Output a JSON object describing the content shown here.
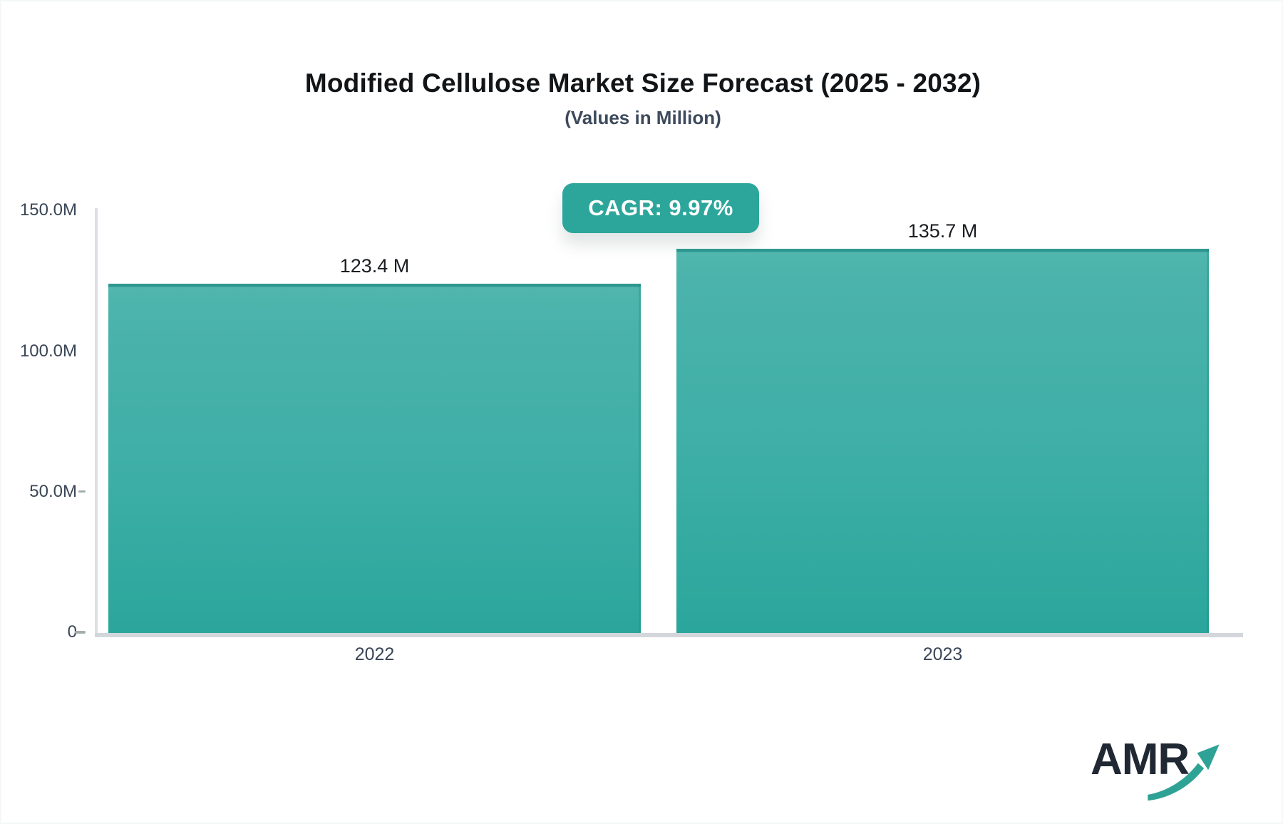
{
  "page": {
    "background": "#ffffff"
  },
  "header": {
    "title": "Modified Cellulose Market Size Forecast (2025 - 2032)",
    "subtitle": "(Values in Million)"
  },
  "badge": {
    "label": "CAGR: 9.97%",
    "background": "#2ca69b",
    "text_color": "#ffffff"
  },
  "chart_data": {
    "type": "bar",
    "categories": [
      "2022",
      "2023"
    ],
    "values": [
      123.4,
      135.7
    ],
    "value_labels": [
      "123.4 M",
      "135.7 M"
    ],
    "title": "Modified Cellulose Market Size Forecast (2025 - 2032)",
    "subtitle": "(Values in Million)",
    "cagr_percent": 9.97,
    "xlabel": "",
    "ylabel": "",
    "ylim": [
      0,
      150
    ],
    "ytick_labels": [
      "150.0M",
      "100.0M",
      "50.0M",
      "0"
    ],
    "grid": false,
    "legend": false,
    "bar_color_top": "#4bb3ab",
    "bar_color_bottom": "#2ba69c",
    "bar_top_edge_color": "#2e978f"
  },
  "axes": {
    "axis_line_color": "#dce0e4",
    "baseline_color": "#d3d7dc",
    "tick_color": "#a3afae",
    "label_color": "#3a4657"
  },
  "logo": {
    "text": "AMR",
    "text_color": "#202833",
    "arrow_color": "#2ea395"
  }
}
